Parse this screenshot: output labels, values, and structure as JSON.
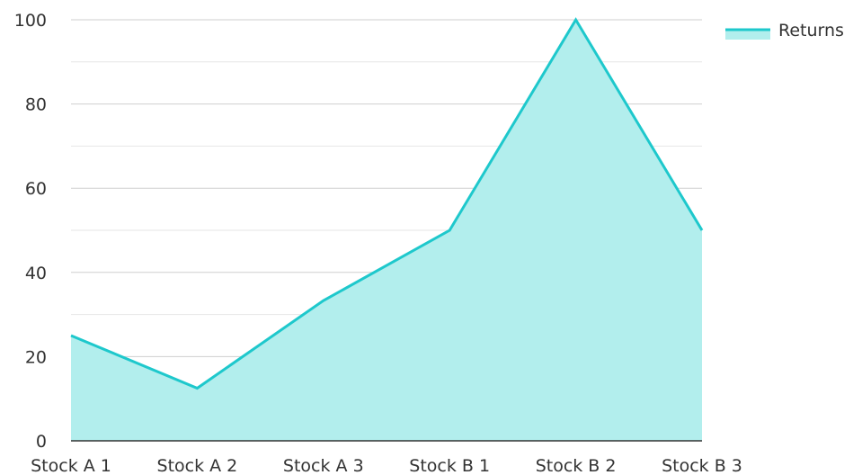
{
  "chart_data": {
    "type": "area",
    "categories": [
      "Stock A 1",
      "Stock A 2",
      "Stock A 3",
      "Stock B 1",
      "Stock B 2",
      "Stock B 3"
    ],
    "series": [
      {
        "name": "Returns",
        "values": [
          25,
          12.5,
          33.3,
          50,
          100,
          50
        ]
      }
    ],
    "ylim": [
      0,
      100
    ],
    "y_ticks": [
      0,
      20,
      40,
      60,
      80,
      100
    ],
    "grid": true,
    "legend_position": "top-right",
    "colors": {
      "line": "#1ec8cc",
      "fill": "#b2eeed"
    }
  }
}
